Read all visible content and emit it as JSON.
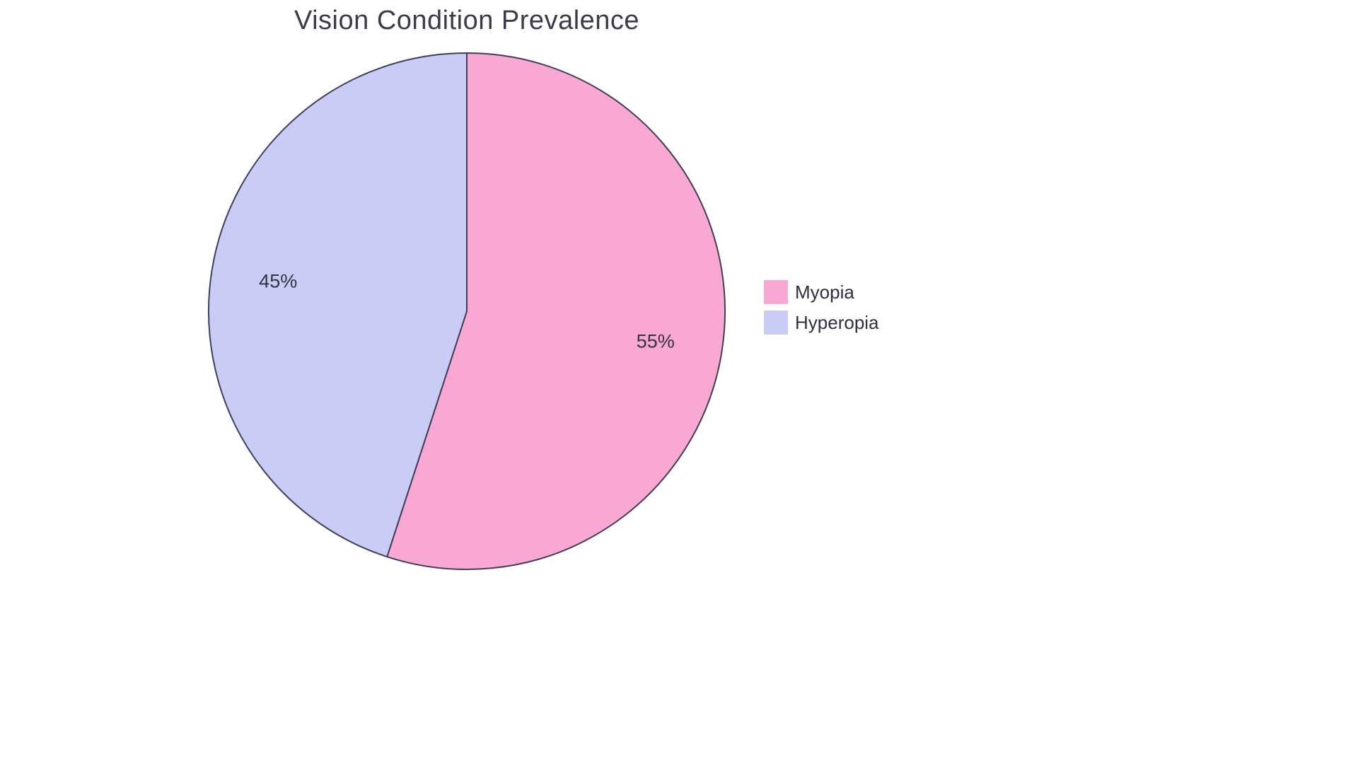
{
  "chart_data": {
    "type": "pie",
    "title": "Vision Condition Prevalence",
    "labels": [
      "Myopia",
      "Hyperopia"
    ],
    "values": [
      55,
      45
    ],
    "value_labels": [
      "55%",
      "45%"
    ],
    "colors": [
      "#F9A8D4",
      "#C9CCF4"
    ],
    "stroke_color": "#3F3F5A",
    "background_color": "#FFFFFF",
    "legend_position": "right",
    "start_angle": "top",
    "direction": "clockwise"
  }
}
